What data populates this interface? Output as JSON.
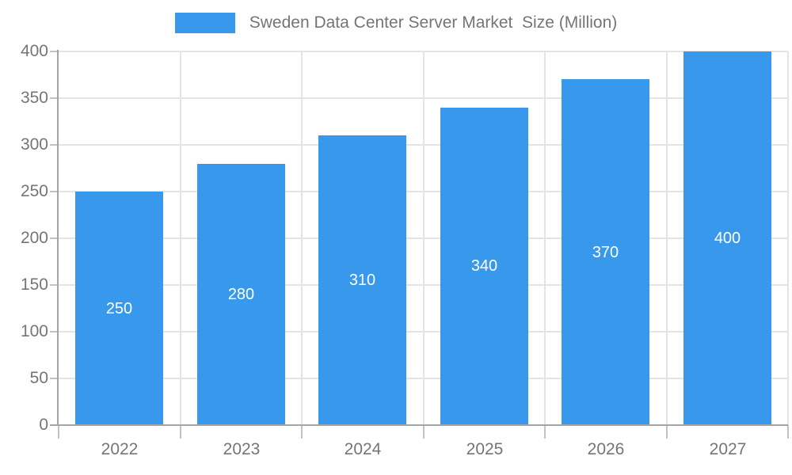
{
  "legend": {
    "position": "top",
    "items": [
      {
        "label": "Sweden Data Center Server Market  Size (Million)",
        "color": "#3899EC"
      }
    ]
  },
  "chart_data": {
    "type": "bar",
    "title": "Sweden Data Center Server Market  Size (Million)",
    "categories": [
      "2022",
      "2023",
      "2024",
      "2025",
      "2026",
      "2027"
    ],
    "series": [
      {
        "name": "Sweden Data Center Server Market  Size (Million)",
        "values": [
          250,
          280,
          310,
          340,
          370,
          400
        ],
        "color": "#3899EC"
      }
    ],
    "data_labels": [
      "250",
      "280",
      "310",
      "340",
      "370",
      "400"
    ],
    "data_label_color": "#FFFFFF",
    "xlabel": "",
    "ylabel": "",
    "ylim": [
      0,
      400
    ],
    "yticks": [
      0,
      50,
      100,
      150,
      200,
      250,
      300,
      350,
      400
    ],
    "grid": true,
    "legend_position": "top-center",
    "colors": {
      "bar": "#3899EC",
      "grid": "#E4E4E4",
      "axis": "#A5A5A5",
      "tick": "#C2C2C2",
      "tick_label": "#757575",
      "background": "#FFFFFF"
    }
  }
}
